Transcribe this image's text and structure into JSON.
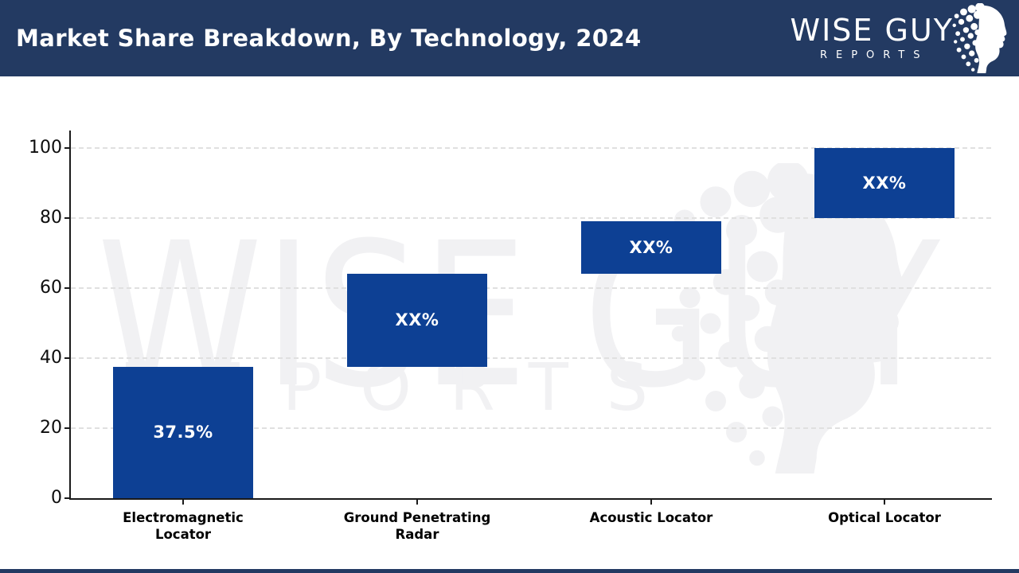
{
  "header": {
    "title": "Market Share Breakdown, By Technology, 2024",
    "logo": {
      "line1": "WISE GUY",
      "line2": "REPORTS"
    }
  },
  "watermark": {
    "line1": "WISE GUY",
    "line2": "REPORTS"
  },
  "chart_data": {
    "type": "bar",
    "variant": "floating-range-bars",
    "title": "Market Share Breakdown, By Technology, 2024",
    "categories": [
      "Electromagnetic Locator",
      "Ground Penetrating Radar",
      "Acoustic Locator",
      "Optical Locator"
    ],
    "bars": [
      {
        "category": "Electromagnetic Locator",
        "start": 0,
        "end": 37.5,
        "label": "37.5%"
      },
      {
        "category": "Ground Penetrating Radar",
        "start": 37.5,
        "end": 64,
        "label": "XX%"
      },
      {
        "category": "Acoustic Locator",
        "start": 64,
        "end": 79,
        "label": "XX%"
      },
      {
        "category": "Optical Locator",
        "start": 80,
        "end": 100,
        "label": "XX%"
      }
    ],
    "ylim": [
      0,
      100
    ],
    "y_ticks": [
      0,
      20,
      40,
      60,
      80,
      100
    ],
    "grid": "horizontal-dashed",
    "legend": "none",
    "bar_color": "#0d4094",
    "bar_label_color": "#ffffff"
  },
  "colors": {
    "header_background": "#233a62",
    "footer_background": "#233a62",
    "bar_blue": "#0d4094",
    "watermark_gray": "#f1f1f3"
  }
}
